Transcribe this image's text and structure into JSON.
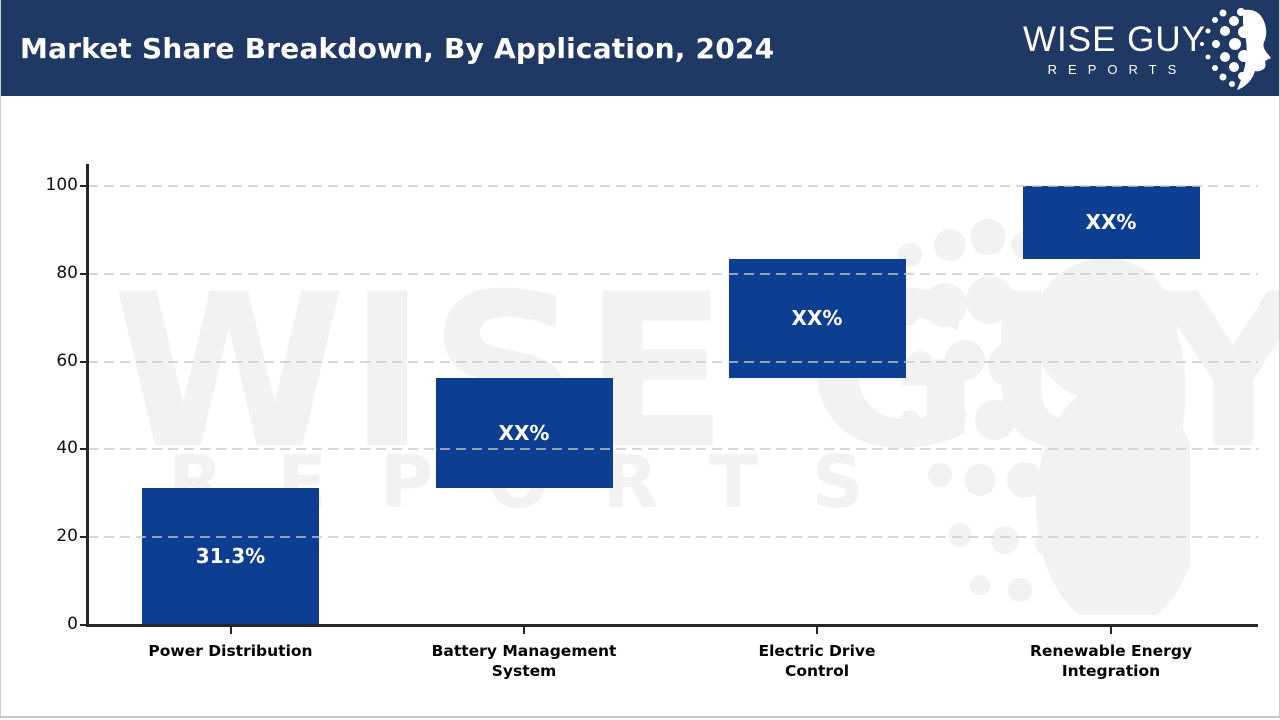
{
  "header": {
    "title": "Market Share Breakdown, By Application, 2024",
    "logo": {
      "line1": "WISE GUY",
      "line2": "REPORTS"
    }
  },
  "watermark": {
    "line1": "WISE GUY",
    "line2": "REPORTS"
  },
  "colors": {
    "header_bg": "#1f3864",
    "bar_blue": "#0d3e92",
    "bar_label_text": "#ffffff",
    "gridline_gray": "#c8c8c8",
    "watermark_gray": "#f2f2f2"
  },
  "chart_data": {
    "type": "bar",
    "subtype": "waterfall",
    "title": "Market Share Breakdown, By Application, 2024",
    "xlabel": "",
    "ylabel": "",
    "ylim": [
      0,
      105
    ],
    "yticks": [
      0,
      20,
      40,
      60,
      80,
      100
    ],
    "grid": "dashed horizontal, drawn over bars",
    "legend": "none",
    "categories": [
      [
        "Power Distribution"
      ],
      [
        "Battery Management",
        "System"
      ],
      [
        "Electric Drive",
        "Control"
      ],
      [
        "Renewable Energy",
        "Integration"
      ]
    ],
    "segments": [
      {
        "start": 0,
        "end": 31.3,
        "value": 31.3,
        "label": "31.3%"
      },
      {
        "start": 31.3,
        "end": 56.3,
        "value": 25.0,
        "label": "XX%"
      },
      {
        "start": 56.3,
        "end": 83.4,
        "value": 27.1,
        "label": "XX%"
      },
      {
        "start": 83.4,
        "end": 100,
        "value": 16.6,
        "label": "XX%"
      }
    ]
  }
}
